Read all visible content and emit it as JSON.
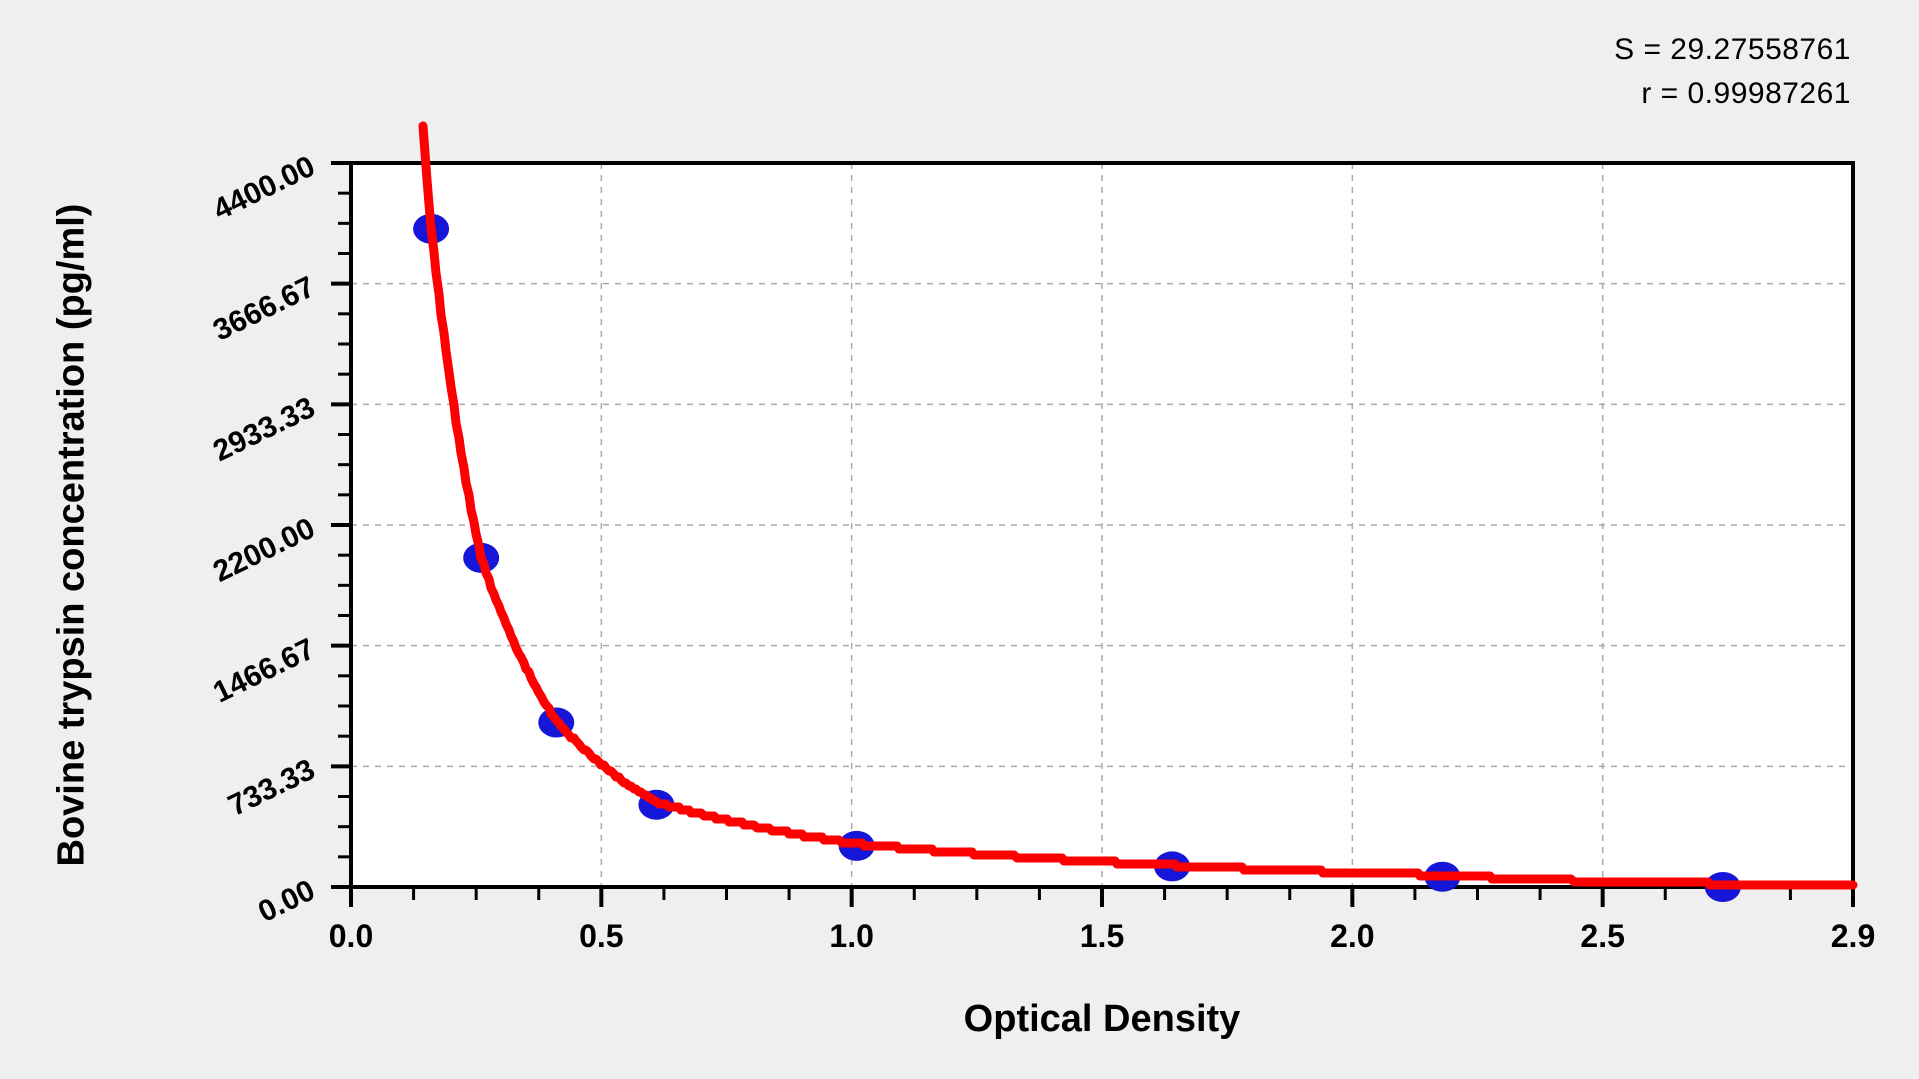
{
  "stats": {
    "s_line": "S = 29.27558761",
    "r_line": "r = 0.99987261"
  },
  "chart_data": {
    "type": "scatter",
    "title": "",
    "xlabel": "Optical Density",
    "ylabel": "Bovine trypsin concentration (pg/ml)",
    "x_axis": {
      "min": 0,
      "max": 2.9,
      "tick_labels": [
        "0.0",
        "0.5",
        "1.0",
        "1.5",
        "2.0",
        "2.5",
        "2.9"
      ],
      "tick_values": [
        0,
        0.5,
        1.0,
        1.5,
        2.0,
        2.5,
        2.9
      ],
      "minor_step": 0.125
    },
    "y_axis": {
      "min": 0,
      "max": 4400,
      "tick_labels": [
        "0.00",
        "733.33",
        "1466.67",
        "2200.00",
        "2933.33",
        "3666.67",
        "4400.00"
      ],
      "tick_values": [
        0,
        733.33,
        1466.67,
        2200.0,
        2933.33,
        3666.67,
        4400.0
      ],
      "minor_step": 183.33
    },
    "grid": "dashed",
    "legend": "none",
    "series": [
      {
        "name": "standard-points",
        "type": "scatter",
        "color": "#1616d9",
        "points": [
          [
            0.16,
            4000
          ],
          [
            0.26,
            2000
          ],
          [
            0.41,
            1000
          ],
          [
            0.61,
            500
          ],
          [
            1.01,
            250
          ],
          [
            1.64,
            125
          ],
          [
            2.18,
            62.5
          ],
          [
            2.74,
            0
          ]
        ]
      },
      {
        "name": "fit-curve",
        "type": "line",
        "color": "#ff0000",
        "anchors": [
          [
            0.144,
            4630
          ],
          [
            0.16,
            4000
          ],
          [
            0.26,
            2000
          ],
          [
            0.41,
            1010
          ],
          [
            0.61,
            515
          ],
          [
            1.01,
            262
          ],
          [
            1.64,
            132
          ],
          [
            2.18,
            72
          ],
          [
            2.74,
            20
          ],
          [
            3.0,
            13
          ]
        ]
      }
    ],
    "fit_stats": {
      "S": "29.27558761",
      "r": "0.99987261"
    },
    "colors": {
      "curve": "#ff0000",
      "points": "#1616d9",
      "grid": "#aaaaaa",
      "frame": "#000000",
      "plot_bg": "#ffffff",
      "page_bg": "#efefef"
    }
  }
}
